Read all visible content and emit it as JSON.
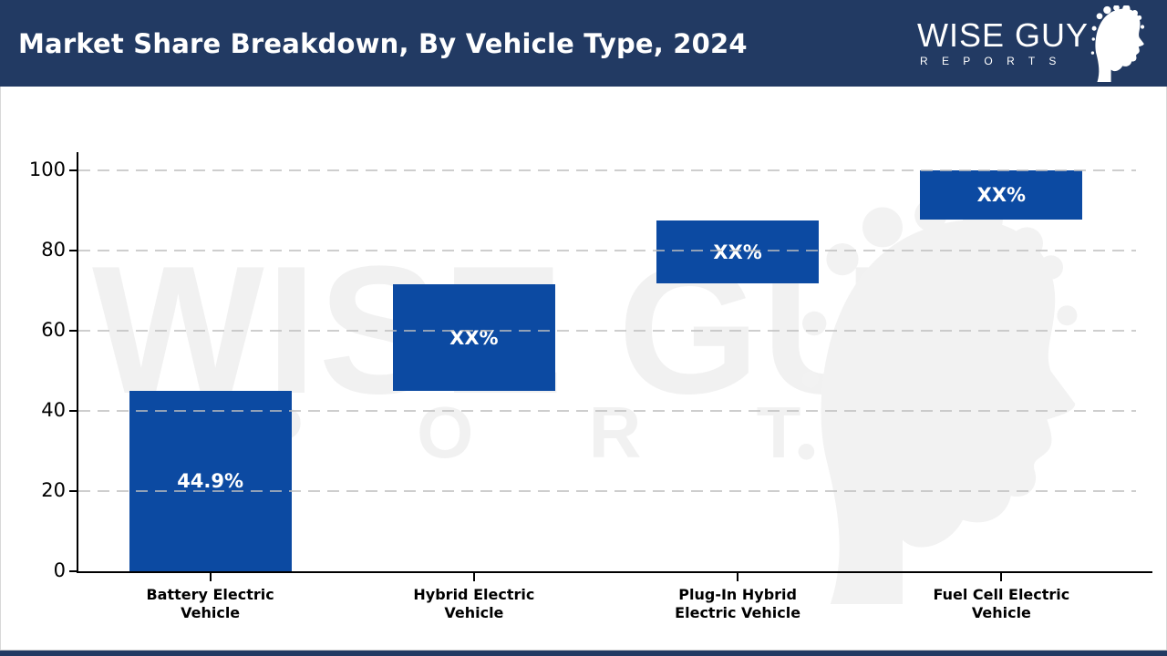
{
  "header": {
    "title": "Market Share Breakdown, By Vehicle Type, 2024",
    "logo_line1": "WISE GUY",
    "logo_line2": "R E P O R T S"
  },
  "watermark": {
    "line1": "WISE GUY",
    "line2": "P O R T S"
  },
  "chart_data": {
    "type": "bar",
    "variant": "waterfall-stacked-percentage",
    "title": "Market Share Breakdown, By Vehicle Type, 2024",
    "categories": [
      "Battery Electric\nVehicle",
      "Hybrid Electric\nVehicle",
      "Plug-In Hybrid\nElectric Vehicle",
      "Fuel Cell Electric\nVehicle"
    ],
    "segments": [
      {
        "category": "Battery Electric Vehicle",
        "start": 0,
        "end": 44.9,
        "label": "44.9%"
      },
      {
        "category": "Hybrid Electric Vehicle",
        "start": 44.9,
        "end": 71.6,
        "label": "XX%"
      },
      {
        "category": "Plug-In Hybrid Electric Vehicle",
        "start": 71.8,
        "end": 87.5,
        "label": "XX%"
      },
      {
        "category": "Fuel Cell Electric Vehicle",
        "start": 87.7,
        "end": 100,
        "label": "XX%"
      }
    ],
    "xlabel": "",
    "ylabel": "",
    "ylim": [
      0,
      100
    ],
    "yticks": [
      0,
      20,
      40,
      60,
      80,
      100
    ],
    "grid": "horizontal-dashed",
    "legend": "none",
    "bar_color": "#0c4aa2",
    "bar_label_color": "#ffffff"
  },
  "colors": {
    "header_bg": "#223a63",
    "footer_bg": "#223a63",
    "bar": "#0c4aa2",
    "gridline": "#d9d9d9",
    "axis": "#000000",
    "watermark": "#f1f1f1",
    "title_text": "#ffffff"
  }
}
